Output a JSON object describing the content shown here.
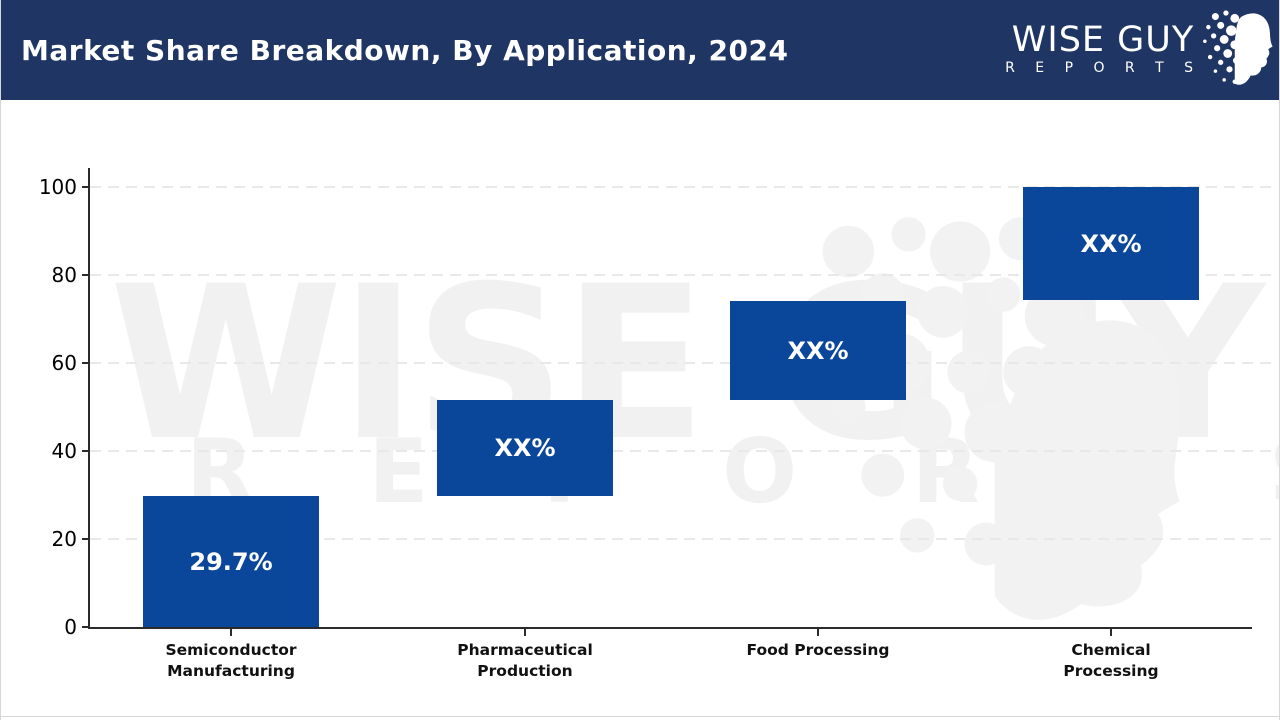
{
  "header": {
    "title": "Market Share Breakdown, By Application, 2024",
    "bg_color": "#1f3563",
    "logo_line1": "WISE GUY",
    "logo_line2": "R E P O R T S"
  },
  "watermark": {
    "line1": "WISE GUY",
    "line2": "R E P O R T S"
  },
  "chart_data": {
    "type": "bar",
    "subtype": "waterfall",
    "title": "Market Share Breakdown, By Application, 2024",
    "categories": [
      "Semiconductor Manufacturing",
      "Pharmaceutical Production",
      "Food Processing",
      "Chemical Processing"
    ],
    "category_lines": [
      [
        "Semiconductor",
        "Manufacturing"
      ],
      [
        "Pharmaceutical",
        "Production"
      ],
      [
        "Food Processing"
      ],
      [
        "Chemical",
        "Processing"
      ]
    ],
    "segments": [
      {
        "category": "Semiconductor Manufacturing",
        "start": 0,
        "end": 29.7,
        "label": "29.7%"
      },
      {
        "category": "Pharmaceutical Production",
        "start": 29.8,
        "end": 51.5,
        "label": "XX%"
      },
      {
        "category": "Food Processing",
        "start": 51.5,
        "end": 74.1,
        "label": "XX%"
      },
      {
        "category": "Chemical Processing",
        "start": 74.3,
        "end": 100,
        "label": "XX%"
      }
    ],
    "xlabel": "",
    "ylabel": "",
    "ylim": [
      0,
      100
    ],
    "yticks": [
      0,
      20,
      40,
      60,
      80,
      100
    ],
    "grid": "horizontal-dashed",
    "legend": "none",
    "bar_color": "#0a4699",
    "bar_label_color": "#ffffff",
    "axis_color": "#2b2b2b",
    "grid_color": "#e8e8e8"
  }
}
